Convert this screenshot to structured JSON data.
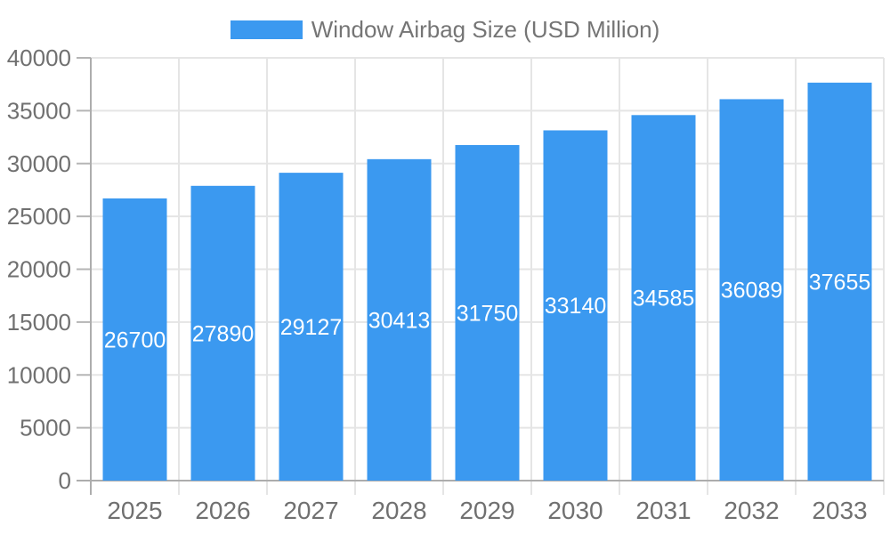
{
  "legend": {
    "label": "Window Airbag Size (USD Million)"
  },
  "colors": {
    "bar": "#3B99F0",
    "grid": "#E5E5E5",
    "axis": "#ADADAD",
    "tick": "#B5B5B5",
    "axis_text": "#707070",
    "legend_text": "#757575",
    "bar_label_text": "#FFFFFF",
    "background": "#FFFFFF"
  },
  "chart_data": {
    "type": "bar",
    "title": "Window Airbag Size (USD Million)",
    "categories": [
      "2025",
      "2026",
      "2027",
      "2028",
      "2029",
      "2030",
      "2031",
      "2032",
      "2033"
    ],
    "values": [
      26700,
      27890,
      29127,
      30413,
      31750,
      33140,
      34585,
      36089,
      37655
    ],
    "xlabel": "",
    "ylabel": "",
    "ylim": [
      0,
      40000
    ],
    "ytick_step": 5000,
    "ytick_labels": [
      "0",
      "5000",
      "10000",
      "15000",
      "20000",
      "25000",
      "30000",
      "35000",
      "40000"
    ],
    "grid": true,
    "legend_position": "top",
    "value_labels": "inside-center"
  }
}
